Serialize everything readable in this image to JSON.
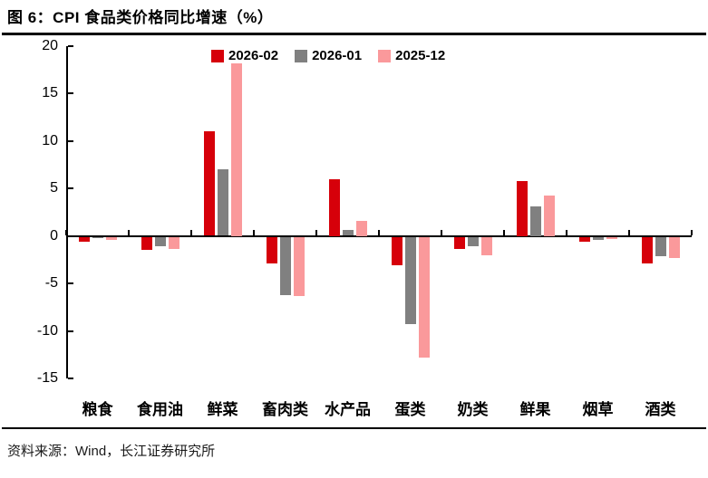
{
  "title": "图 6：CPI 食品类价格同比增速（%）",
  "source": "资料来源：Wind，长江证券研究所",
  "chart_data": {
    "type": "bar",
    "title": "CPI 食品类价格同比增速（%）",
    "categories": [
      "粮食",
      "食用油",
      "鲜菜",
      "畜肉类",
      "水产品",
      "蛋类",
      "奶类",
      "鲜果",
      "烟草",
      "酒类"
    ],
    "series": [
      {
        "name": "2026-02",
        "color": "#D6000A",
        "values": [
          -0.5,
          -1.3,
          11.0,
          -2.8,
          6.0,
          -3.0,
          -1.2,
          5.8,
          -0.5,
          -2.8
        ]
      },
      {
        "name": "2026-01",
        "color": "#808080",
        "values": [
          -0.1,
          -1.0,
          7.0,
          -6.1,
          0.6,
          -9.2,
          -1.0,
          3.1,
          -0.3,
          -2.0
        ]
      },
      {
        "name": "2025-12",
        "color": "#FA999B",
        "values": [
          -0.3,
          -1.2,
          18.2,
          -6.2,
          1.6,
          -12.7,
          -1.9,
          4.3,
          -0.2,
          -2.2
        ]
      }
    ],
    "yticks": [
      20,
      15,
      10,
      5,
      0,
      -5,
      -10,
      -15
    ],
    "ylim": [
      -15,
      20
    ],
    "xlabel": "",
    "ylabel": "",
    "grid": false,
    "legend_position": "top-center"
  }
}
